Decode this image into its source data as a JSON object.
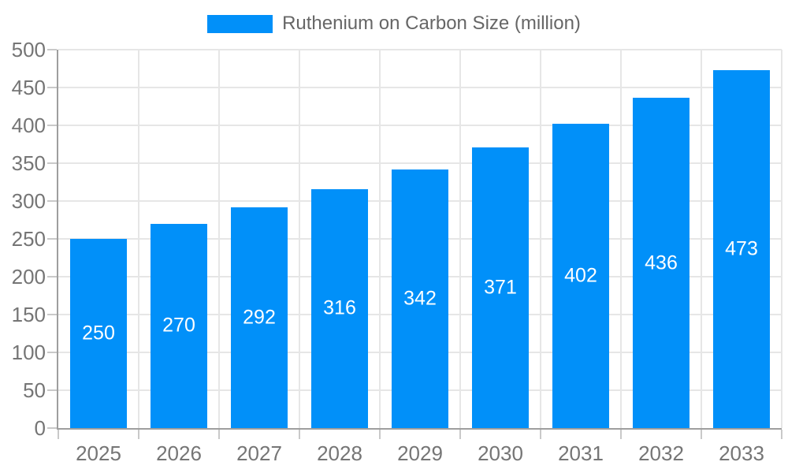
{
  "legend": {
    "label": "Ruthenium on Carbon Size (million)"
  },
  "chart_data": {
    "type": "bar",
    "title": "Ruthenium on Carbon Size (million)",
    "categories": [
      "2025",
      "2026",
      "2027",
      "2028",
      "2029",
      "2030",
      "2031",
      "2032",
      "2033"
    ],
    "values": [
      250,
      270,
      292,
      316,
      342,
      371,
      402,
      436,
      473
    ],
    "xlabel": "",
    "ylabel": "",
    "ylim": [
      0,
      500
    ],
    "yticks": [
      0,
      50,
      100,
      150,
      200,
      250,
      300,
      350,
      400,
      450,
      500
    ],
    "grid": true,
    "legend_position": "top",
    "value_labels": "inside-center",
    "colors": {
      "bar": "#0190f9",
      "value_label_text": "#ffffff",
      "grid_line": "#e6e6e6",
      "tick_mark": "#c9c9c9",
      "axis_line": "#9e9e9e",
      "tick_label_text": "#757575",
      "legend_text": "#666666",
      "background": "#ffffff"
    }
  }
}
